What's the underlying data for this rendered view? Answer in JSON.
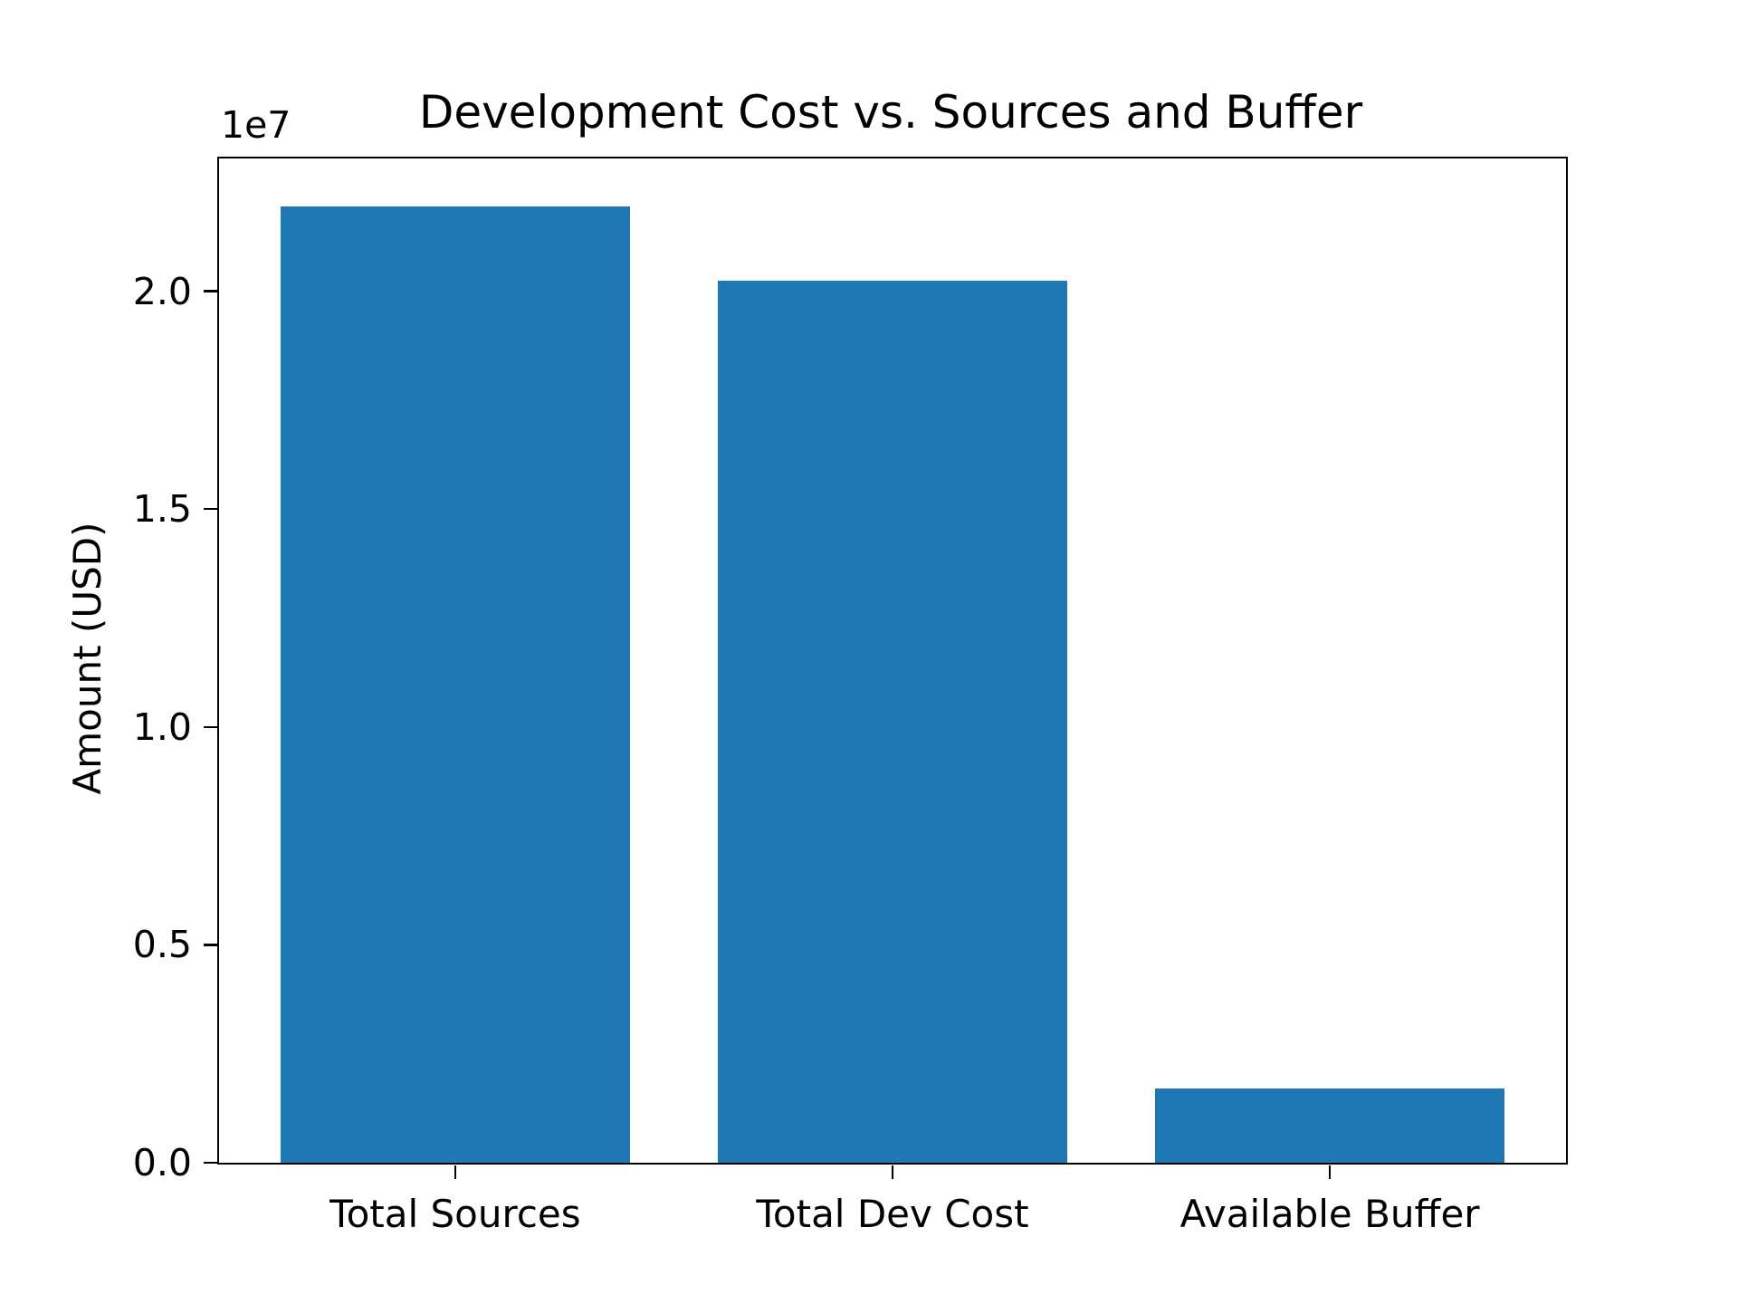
{
  "chart_data": {
    "type": "bar",
    "title": "Development Cost vs. Sources and Buffer",
    "ylabel": "Amount (USD)",
    "y_offset_label": "1e7",
    "categories": [
      "Total Sources",
      "Total Dev Cost",
      "Available Buffer"
    ],
    "values": [
      21950000,
      20250000,
      1700000
    ],
    "y_tick_values": [
      0,
      5000000,
      10000000,
      15000000,
      20000000
    ],
    "y_tick_labels": [
      "0.0",
      "0.5",
      "1.0",
      "1.5",
      "2.0"
    ],
    "ylim": [
      0,
      23047500
    ],
    "grid": false,
    "bar_color": "#1f77b4",
    "spine_color": "#000000",
    "background_color": "#ffffff"
  }
}
